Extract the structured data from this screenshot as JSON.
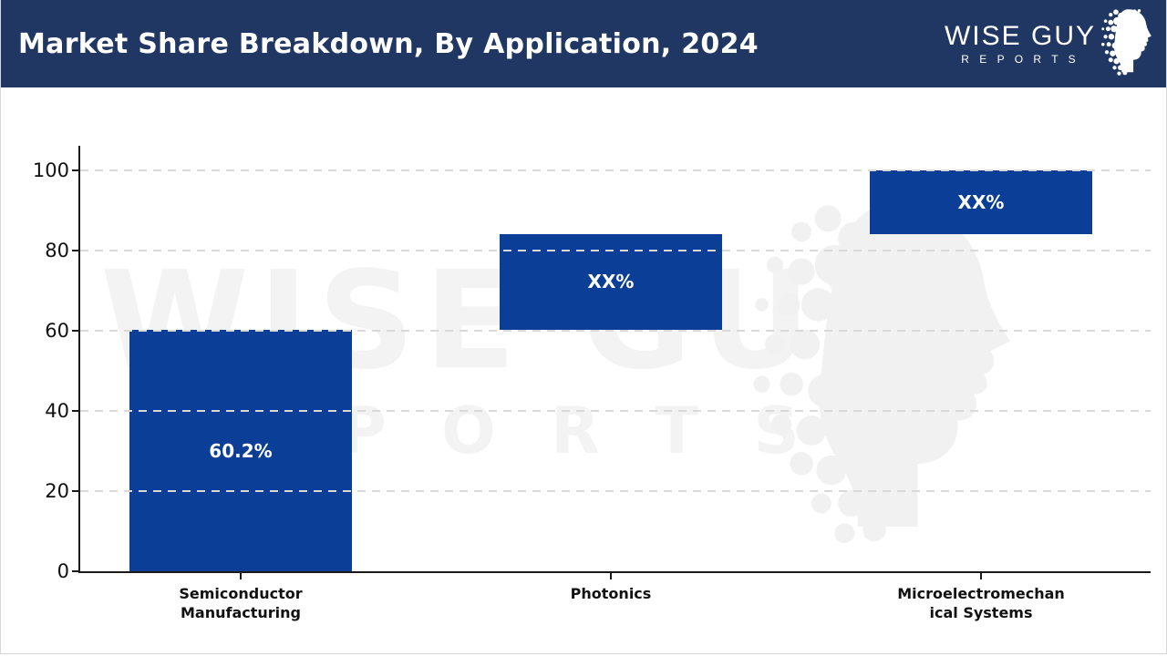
{
  "header": {
    "title": "Market Share Breakdown, By Application, 2024",
    "logo": {
      "line1": "WISE GUY",
      "line2": "R E P O R T S"
    }
  },
  "watermark": {
    "line1": "WISE GUY",
    "line2": "R E P O R T S"
  },
  "colors": {
    "header_bg": "#213763",
    "bar": "#0b3e96",
    "grid": "#d9d9d9",
    "axis": "#1a1a1a",
    "bar_label": "#ffffff"
  },
  "chart_data": {
    "type": "bar",
    "subtype": "stacked-waterfall",
    "title": "Market Share Breakdown, By Application, 2024",
    "categories": [
      "Semiconductor Manufacturing",
      "Photonics",
      "Microelectromechanical Systems"
    ],
    "categories_wrapped": [
      [
        "Semiconductor",
        "Manufacturing"
      ],
      [
        "Photonics"
      ],
      [
        "Microelectromechan",
        "ical Systems"
      ]
    ],
    "segments": [
      {
        "category": "Semiconductor Manufacturing",
        "start": 0,
        "end": 60.2,
        "label": "60.2%"
      },
      {
        "category": "Photonics",
        "start": 60.2,
        "end": 84.2,
        "label": "XX%"
      },
      {
        "category": "Microelectromechanical Systems",
        "start": 84.2,
        "end": 100,
        "label": "XX%"
      }
    ],
    "xlabel": "",
    "ylabel": "",
    "ylim": [
      0,
      100
    ],
    "yticks": [
      0,
      20,
      40,
      60,
      80,
      100
    ],
    "grid": "horizontal-dashed",
    "legend": "none",
    "bar_color": "#0b3e96",
    "bar_label_color": "#ffffff"
  }
}
